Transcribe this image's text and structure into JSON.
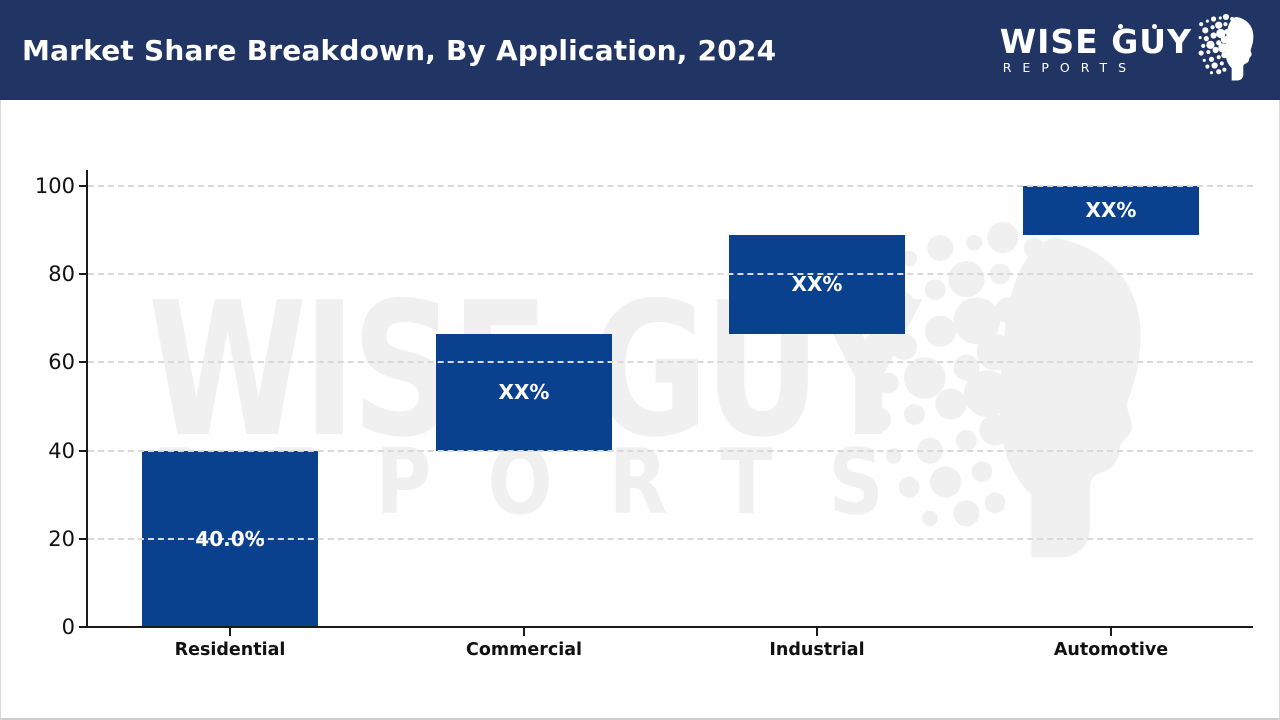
{
  "header": {
    "title": "Market Share Breakdown, By Application, 2024",
    "logo": {
      "name_line": "WISE GUY",
      "sub_line": "REPORTS"
    }
  },
  "watermark": {
    "name_line": "WISE GUY",
    "sub_line": "REPORTS"
  },
  "chart_data": {
    "type": "bar",
    "subtype": "waterfall",
    "title": "Market Share Breakdown, By Application, 2024",
    "categories": [
      "Residential",
      "Commercial",
      "Industrial",
      "Automotive"
    ],
    "segments": [
      {
        "category": "Residential",
        "start": 0,
        "end": 40,
        "label": "40.0%"
      },
      {
        "category": "Commercial",
        "start": 40,
        "end": 66.5,
        "label": "XX%"
      },
      {
        "category": "Industrial",
        "start": 66.5,
        "end": 89,
        "label": "XX%"
      },
      {
        "category": "Automotive",
        "start": 89,
        "end": 100,
        "label": "XX%"
      }
    ],
    "xlabel": "",
    "ylabel": "",
    "ylim": [
      0,
      100
    ],
    "yticks": [
      0,
      20,
      40,
      60,
      80,
      100
    ],
    "grid": "horizontal-dashed",
    "legend": "none"
  },
  "colors": {
    "header_bg": "#213564",
    "bar": "#0a418f",
    "bar_label": "#ffffff",
    "grid": "#d9d9d9",
    "axis": "#1a1a1a",
    "watermark": "#f0f0f0"
  }
}
